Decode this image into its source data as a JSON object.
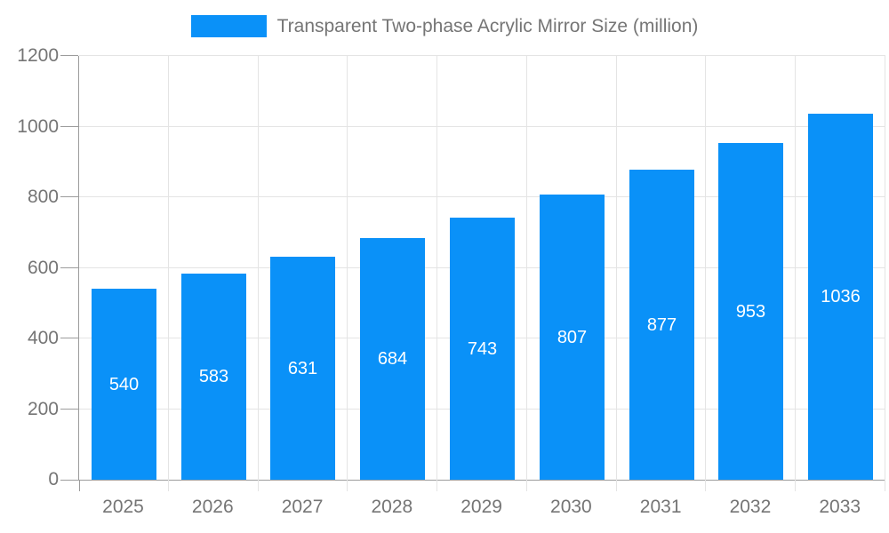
{
  "chart_data": {
    "type": "bar",
    "title": "Transparent Two-phase Acrylic Mirror Size (million)",
    "legend_label": "Transparent Two-phase Acrylic Mirror Size (million)",
    "categories": [
      "2025",
      "2026",
      "2027",
      "2028",
      "2029",
      "2030",
      "2031",
      "2032",
      "2033"
    ],
    "series": [
      {
        "name": "Transparent Two-phase Acrylic Mirror Size (million)",
        "values": [
          540,
          583,
          631,
          684,
          743,
          807,
          877,
          953,
          1036
        ]
      }
    ],
    "xlabel": "",
    "ylabel": "",
    "ylim": [
      0,
      1200
    ],
    "yticks": [
      0,
      200,
      400,
      600,
      800,
      1000,
      1200
    ],
    "grid": true,
    "legend_position": "top-center",
    "bar_value_labels": true
  },
  "colors": {
    "bar": "#0a91f8",
    "bar_value_label": "#ffffff",
    "grid": "#e4e4e4",
    "axis": "#9c9c9c",
    "tick_text": "#757575",
    "legend_text": "#757575",
    "background": "#ffffff"
  }
}
